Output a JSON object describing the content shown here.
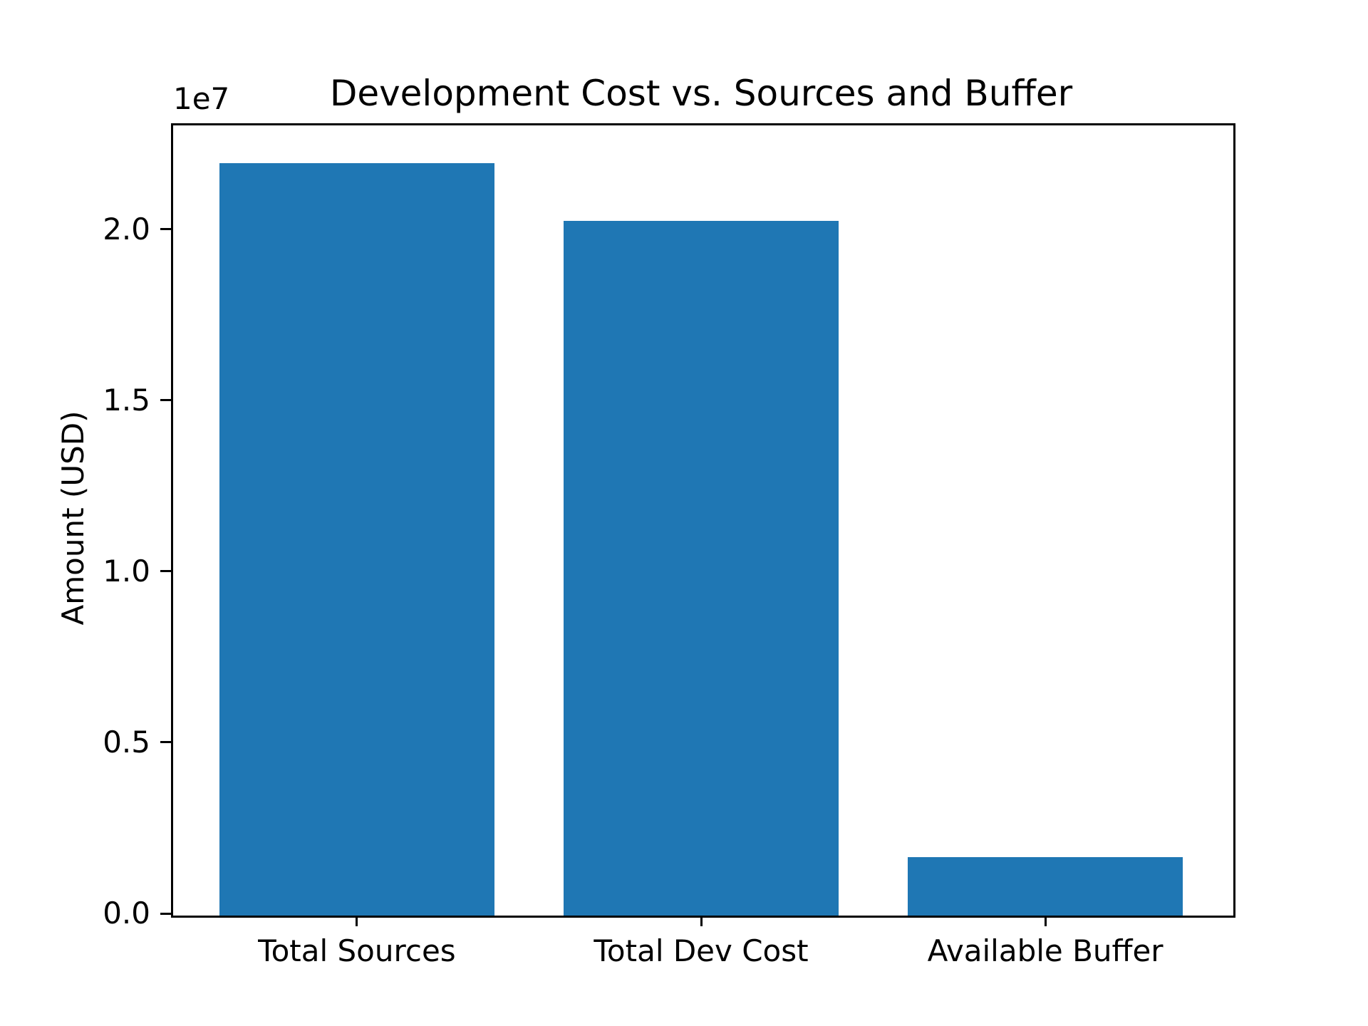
{
  "figure": {
    "background": "#ffffff"
  },
  "chart_data": {
    "type": "bar",
    "title": "Development Cost vs. Sources and Buffer",
    "xlabel": "",
    "ylabel": "Amount (USD)",
    "offset_text": "1e7",
    "categories": [
      "Total Sources",
      "Total Dev Cost",
      "Available Buffer"
    ],
    "values": [
      22000000,
      20300000,
      1700000
    ],
    "bar_color": "#1f77b4",
    "axis_color": "#000000",
    "ylim": [
      0,
      23100000
    ],
    "yticks": [
      0,
      5000000,
      10000000,
      15000000,
      20000000
    ],
    "ytick_labels": [
      "0.0",
      "0.5",
      "1.0",
      "1.5",
      "2.0"
    ],
    "grid": false,
    "legend_position": "none"
  }
}
